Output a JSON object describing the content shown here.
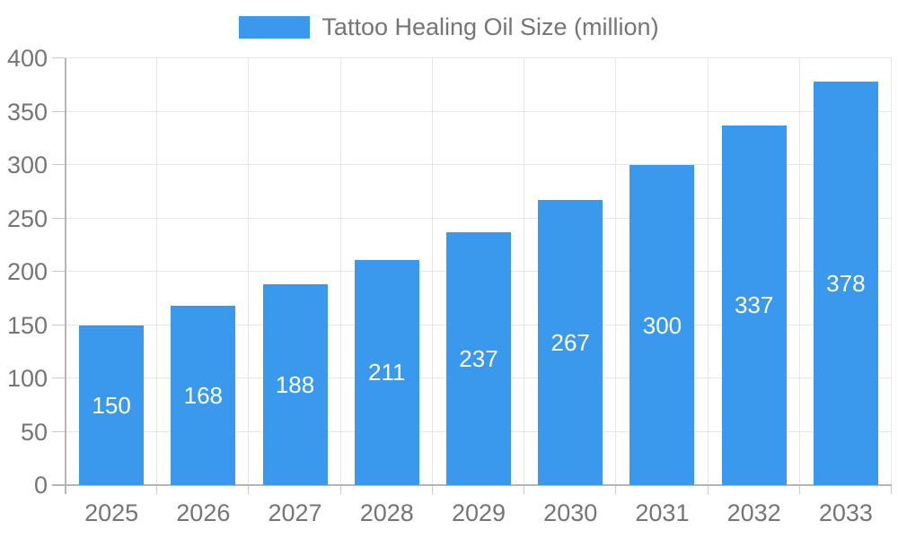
{
  "chart_data": {
    "type": "bar",
    "title": "Tattoo Healing Oil Size (million)",
    "categories": [
      "2025",
      "2026",
      "2027",
      "2028",
      "2029",
      "2030",
      "2031",
      "2032",
      "2033"
    ],
    "values": [
      150,
      168,
      188,
      211,
      237,
      267,
      300,
      337,
      378
    ],
    "xlabel": "",
    "ylabel": "",
    "ylim": [
      0,
      400
    ],
    "y_ticks": [
      0,
      50,
      100,
      150,
      200,
      250,
      300,
      350,
      400
    ],
    "grid": true,
    "legend_position": "top",
    "bar_value_labels": true
  },
  "colors": {
    "bar": "#3B99ED",
    "bar_label": "#FFFFFF",
    "axis_text": "#757575",
    "gridline": "#E6E6E6",
    "axis_line": "#B5B5B5",
    "tick": "#C9C9C9",
    "background": "#FFFFFF"
  }
}
